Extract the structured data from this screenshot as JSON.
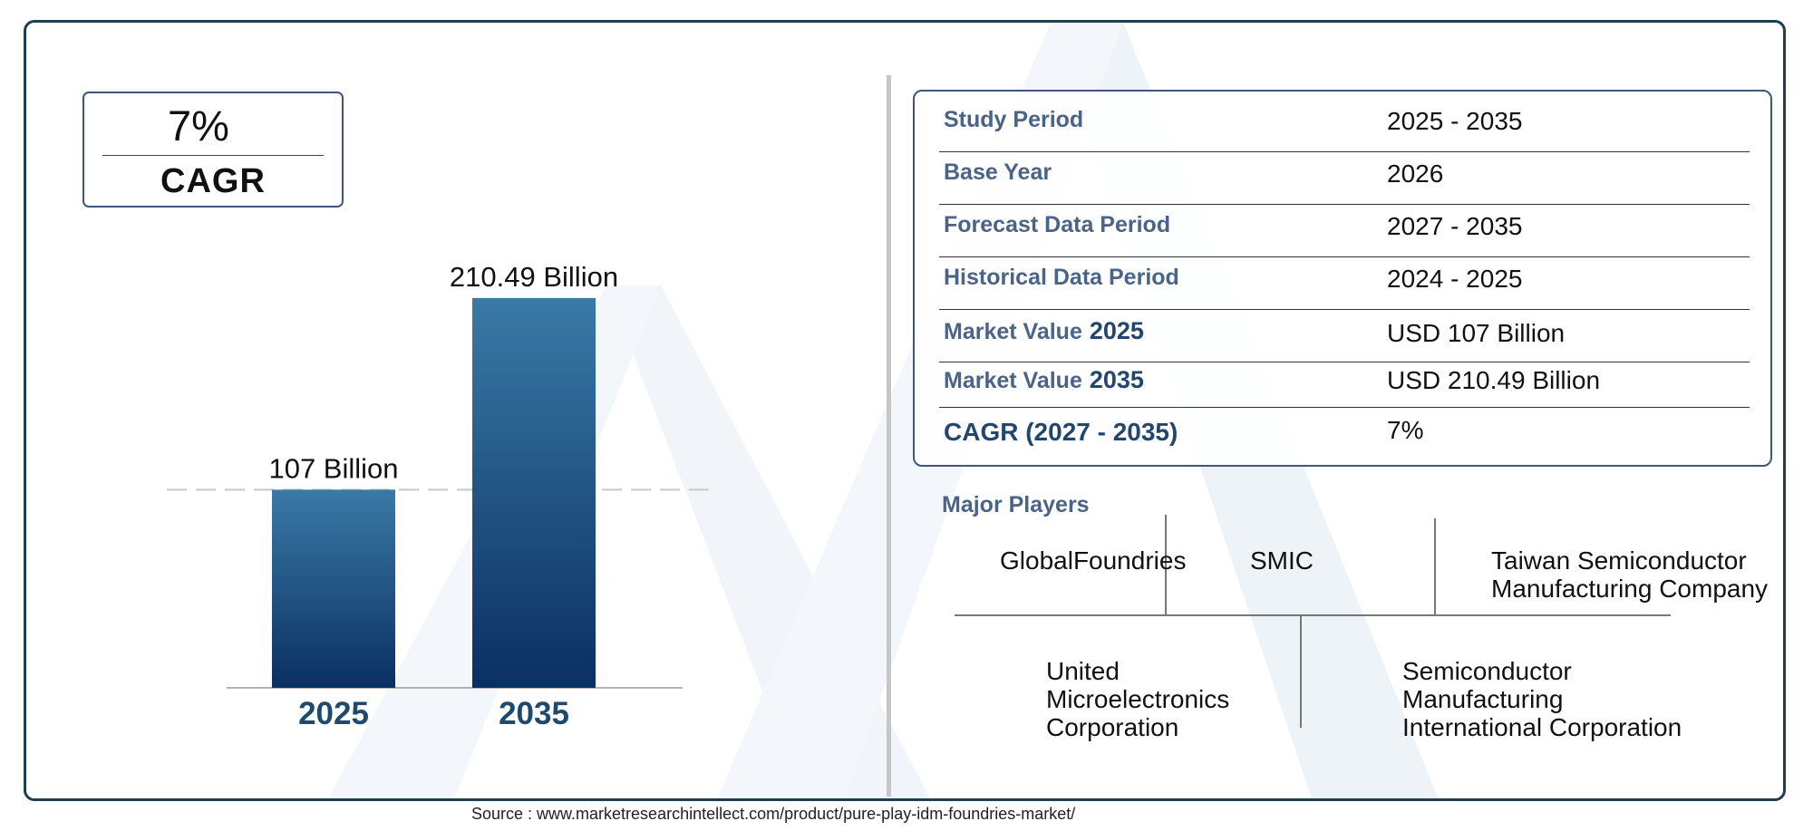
{
  "cagr_badge": {
    "value": "7%",
    "label": "CAGR"
  },
  "chart_data": {
    "type": "bar",
    "categories": [
      "2025",
      "2035"
    ],
    "values": [
      107,
      210.49
    ],
    "data_labels": [
      "107 Billion",
      "210.49 Billion"
    ],
    "reference_line": 107,
    "ylim": [
      0,
      230
    ]
  },
  "summary": {
    "rows": [
      {
        "key": "Study Period",
        "value": "2025 - 2035"
      },
      {
        "key": "Base Year",
        "value": "2026"
      },
      {
        "key": "Forecast Data Period",
        "value": "2027 - 2035"
      },
      {
        "key": "Historical Data Period",
        "value": "2024 - 2025"
      },
      {
        "key": "Market Value",
        "key_year": "2025",
        "value": "USD 107 Billion"
      },
      {
        "key": "Market Value",
        "key_year": "2035",
        "value": "USD 210.49 Billion"
      },
      {
        "key": "CAGR (2027 - 2035)",
        "value": "7%"
      }
    ]
  },
  "players": {
    "title": "Major Players",
    "names": [
      "GlobalFoundries",
      "SMIC",
      "Taiwan Semiconductor Manufacturing Company",
      "United Microelectronics Corporation",
      "Semiconductor Manufacturing International Corporation"
    ]
  },
  "source": "Source : www.marketresearchintellect.com/product/pure-play-idm-foundries-market/",
  "colors": {
    "frame": "#1f3e50",
    "bar_top": "#3a7aa6",
    "bar_bottom": "#0a2f63",
    "year_label": "#1d4a6e",
    "key_text": "#4a6387"
  }
}
